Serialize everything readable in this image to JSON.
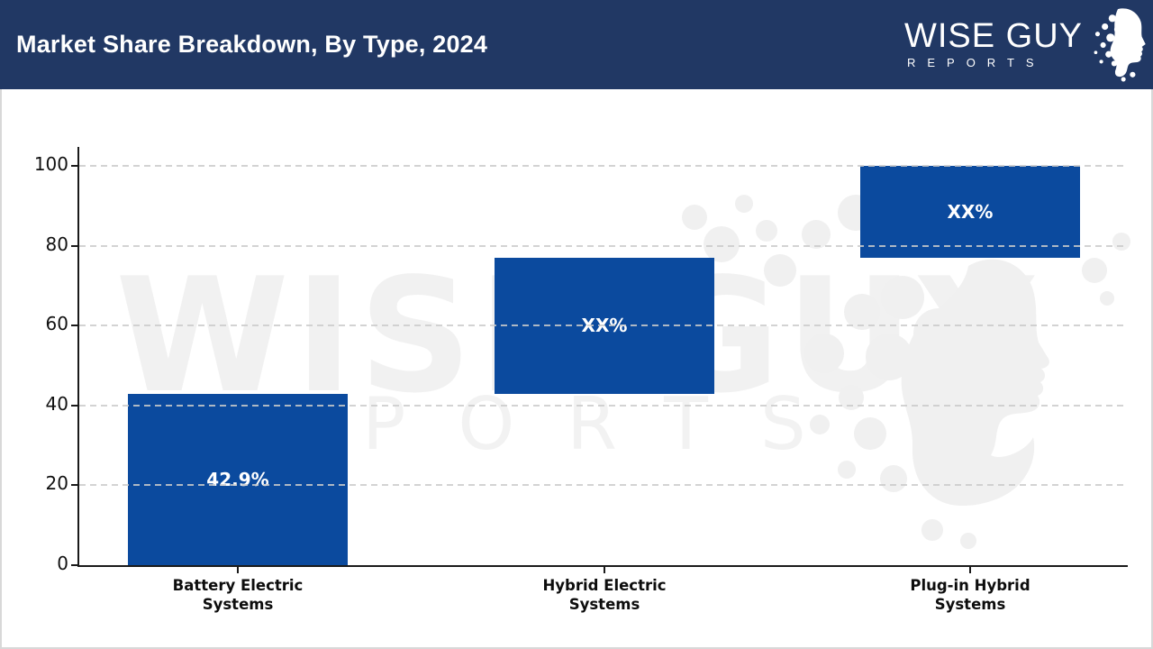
{
  "header": {
    "title": "Market Share Breakdown, By Type, 2024",
    "background": "#213864",
    "logo": {
      "wordmark": "WISE GUY",
      "subtext": "REPORTS"
    }
  },
  "watermark": {
    "line1": "WISE GUY",
    "line2": "REPORTS"
  },
  "chart_data": {
    "type": "bar",
    "subtype": "floating-segment-waterfall",
    "title": "Market Share Breakdown, By Type, 2024",
    "categories": [
      "Battery Electric\nSystems",
      "Hybrid Electric\nSystems",
      "Plug-in Hybrid\nSystems"
    ],
    "bars": [
      {
        "category": "Battery Electric Systems",
        "start": 0,
        "end": 42.9,
        "label": "42.9%"
      },
      {
        "category": "Hybrid Electric Systems",
        "start": 42.9,
        "end": 77,
        "label": "XX%"
      },
      {
        "category": "Plug-in Hybrid Systems",
        "start": 77,
        "end": 100,
        "label": "XX%"
      }
    ],
    "ylim": [
      0,
      100
    ],
    "yticks": [
      0,
      20,
      40,
      60,
      80,
      100
    ],
    "xlabel": "",
    "ylabel": "",
    "bar_color": "#0b4a9e",
    "grid": "horizontal-dashed-over-bars",
    "legend": "none"
  }
}
